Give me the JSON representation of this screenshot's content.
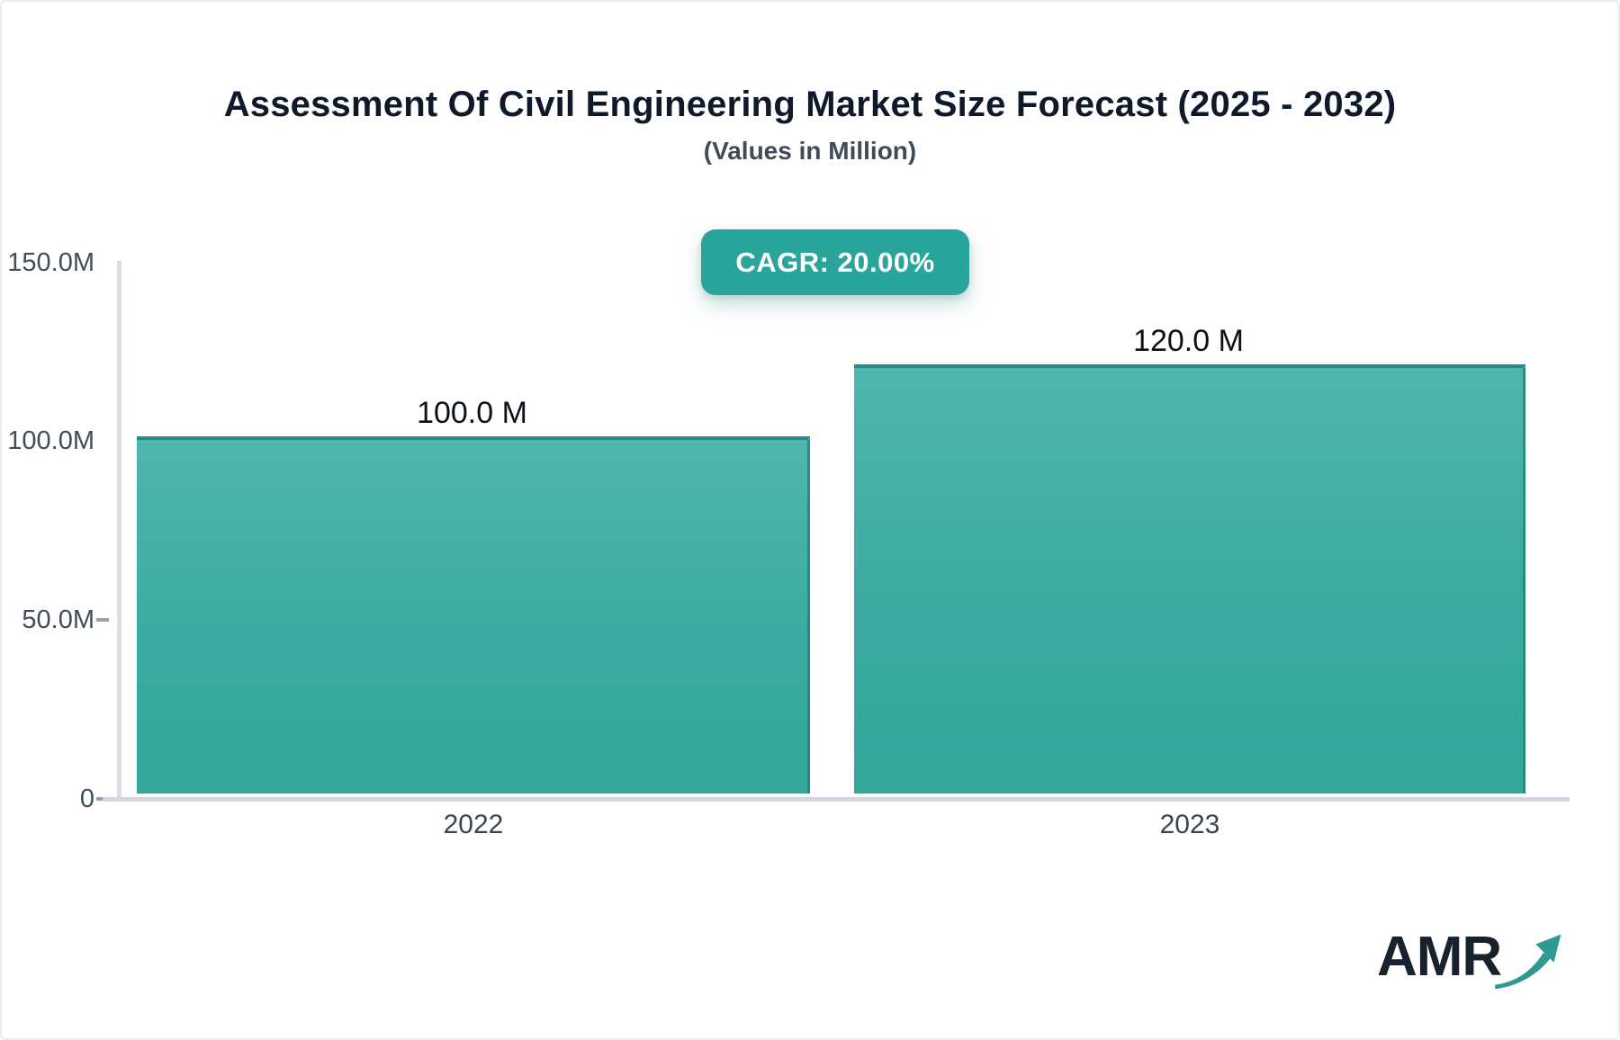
{
  "title": "Assessment Of Civil Engineering Market Size Forecast (2025 - 2032)",
  "subtitle": "(Values in Million)",
  "cagr_badge": "CAGR: 20.00%",
  "chart_data": {
    "type": "bar",
    "categories": [
      "2022",
      "2023"
    ],
    "values": [
      100.0,
      120.0
    ],
    "bar_labels": [
      "100.0 M",
      "120.0 M"
    ],
    "units": "Million",
    "cagr_percent": "20.00%",
    "ylim": [
      0,
      150
    ],
    "yticks": [
      "150.0M",
      "100.0M",
      "50.0M",
      "0"
    ],
    "grid": "off",
    "legend": "none"
  },
  "logo": {
    "text": "AMR"
  },
  "colors": {
    "bar_gradient_top": "#4fb6ad",
    "bar_gradient_bottom": "#32a79a",
    "bar_border": "#1f8e85",
    "badge_background": "#2aa59b",
    "badge_text": "#ffffff",
    "axis_line": "#d3d6dc",
    "title_text": "#0e1a29",
    "label_text": "#3a4452",
    "logo_text": "#17222e",
    "logo_arrow": "#2f9a92"
  }
}
